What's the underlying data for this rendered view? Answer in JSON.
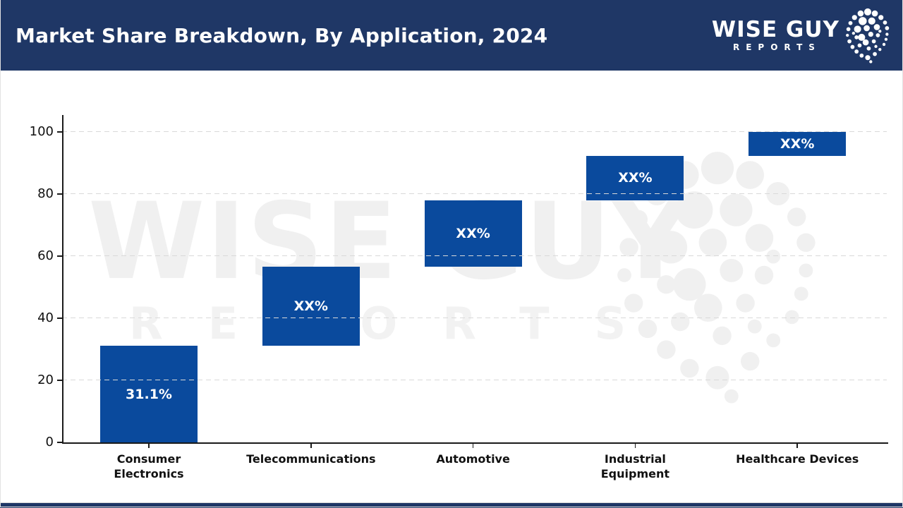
{
  "header": {
    "title": "Market Share Breakdown, By Application, 2024",
    "bg_color": "#1f3766",
    "logo": {
      "line1": "WISE GUY",
      "line2": "REPORTS"
    }
  },
  "watermark": {
    "line1": "WISE GUY",
    "line2": "REPORTS"
  },
  "colors": {
    "bar": "#0a4a9d",
    "header_navy": "#1f3766",
    "gridline": "#d9d9d9",
    "watermark_gray": "#f0f0f0",
    "axis_black": "#1a1a1a"
  },
  "chart_data": {
    "type": "bar",
    "subtype": "waterfall",
    "title": "Market Share Breakdown, By Application, 2024",
    "xlabel": "",
    "ylabel": "",
    "ylim": [
      0,
      105
    ],
    "yticks": [
      0,
      20,
      40,
      60,
      80,
      100
    ],
    "grid": true,
    "grid_style": "dashed",
    "legend": "none",
    "bar_color": "#0a4a9d",
    "categories": [
      "Consumer Electronics",
      "Telecommunications",
      "Automotive",
      "Industrial Equipment",
      "Healthcare Devices"
    ],
    "category_lines": [
      [
        "Consumer",
        "Electronics"
      ],
      [
        "Telecommunications"
      ],
      [
        "Automotive"
      ],
      [
        "Industrial",
        "Equipment"
      ],
      [
        "Healthcare Devices"
      ]
    ],
    "bars": [
      {
        "category": "Consumer Electronics",
        "base": 0,
        "top": 31.1,
        "value": 31.1,
        "label": "31.1%"
      },
      {
        "category": "Telecommunications",
        "base": 31.1,
        "top": 56.6,
        "value": 25.5,
        "label": "XX%"
      },
      {
        "category": "Automotive",
        "base": 56.6,
        "top": 78.0,
        "value": 21.4,
        "label": "XX%"
      },
      {
        "category": "Industrial Equipment",
        "base": 78.0,
        "top": 92.3,
        "value": 14.3,
        "label": "XX%"
      },
      {
        "category": "Healthcare Devices",
        "base": 92.3,
        "top": 100.0,
        "value": 7.7,
        "label": "XX%"
      }
    ]
  }
}
